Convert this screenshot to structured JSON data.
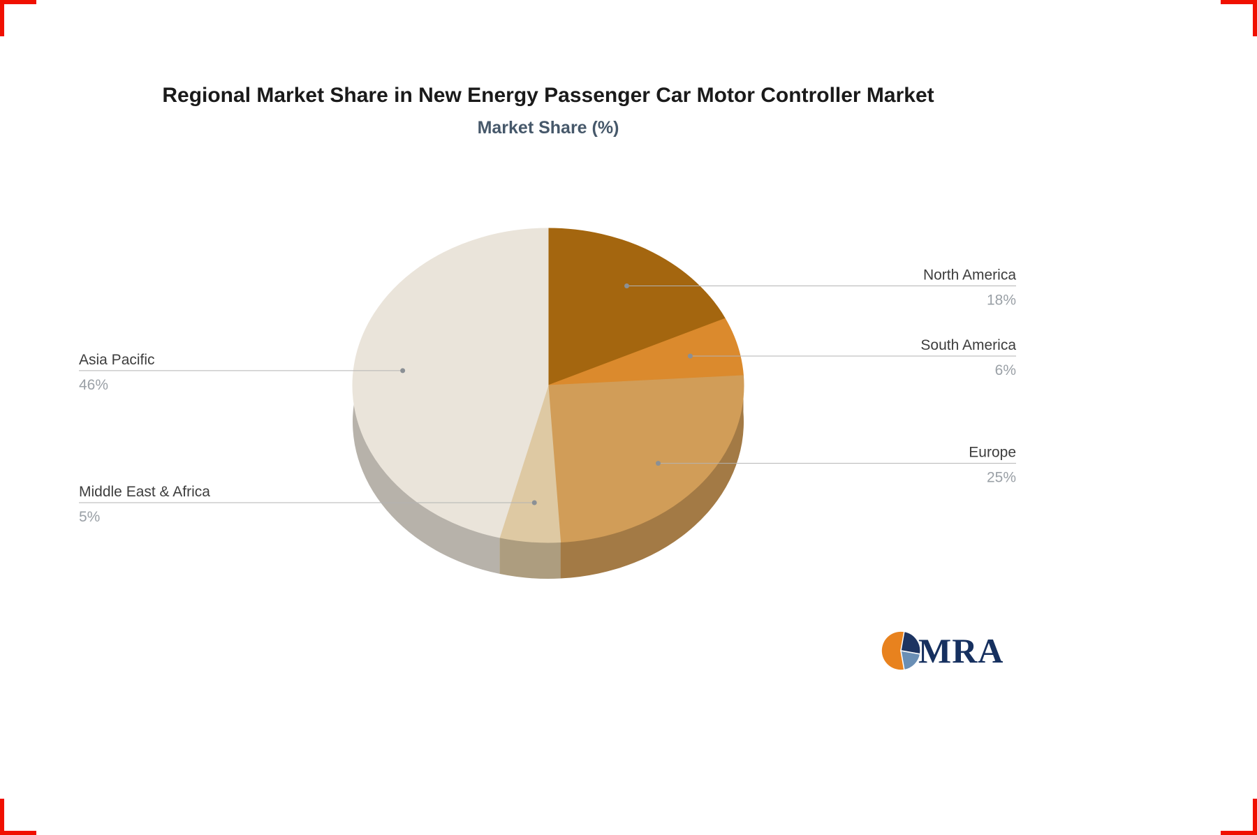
{
  "page": {
    "background": "#ffffff",
    "corner_mark_color": "#f01000"
  },
  "header": {
    "title": "Regional Market Share in New Energy Passenger Car Motor Controller Market",
    "subtitle": "Market Share (%)"
  },
  "chart_data": {
    "type": "pie",
    "effect": "3d",
    "title": "Regional Market Share in New Energy Passenger Car Motor Controller Market",
    "subtitle": "Market Share (%)",
    "unit": "%",
    "start_angle_deg": 0,
    "direction": "clockwise",
    "legend_position": "none",
    "labels_style": "leader-lines",
    "categories": [
      "North America",
      "South America",
      "Europe",
      "Middle East & Africa",
      "Asia Pacific"
    ],
    "values": [
      18,
      6,
      25,
      5,
      46
    ],
    "colors": [
      "#a4660f",
      "#db8a2d",
      "#d19d58",
      "#dec9a3",
      "#eae4da"
    ],
    "label_color": "#3d3d3d",
    "value_color": "#9aa0a6",
    "leader_line_color": "#b3b3b3",
    "leader_dot_color": "#8b9095"
  },
  "branding": {
    "logo_text": "MRA",
    "logo_text_color": "#16305f",
    "icon_orange": "#e8821e",
    "icon_navy": "#1d3461",
    "icon_blue": "#6a8fb5"
  }
}
